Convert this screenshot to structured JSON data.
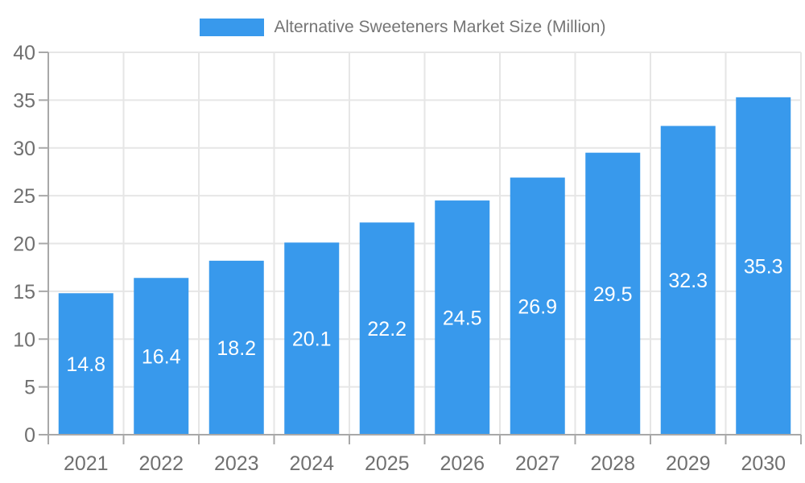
{
  "legend": {
    "label": "Alternative Sweeteners Market Size (Million)"
  },
  "chart_data": {
    "type": "bar",
    "title": "Alternative Sweeteners Market Size (Million)",
    "categories": [
      "2021",
      "2022",
      "2023",
      "2024",
      "2025",
      "2026",
      "2027",
      "2028",
      "2029",
      "2030"
    ],
    "values": [
      14.8,
      16.4,
      18.2,
      20.1,
      22.2,
      24.5,
      26.9,
      29.5,
      32.3,
      35.3
    ],
    "value_labels": [
      "14.8",
      "16.4",
      "18.2",
      "20.1",
      "22.2",
      "24.5",
      "26.9",
      "29.5",
      "32.3",
      "35.3"
    ],
    "ytick_labels": [
      "0",
      "5",
      "10",
      "15",
      "20",
      "25",
      "30",
      "35",
      "40"
    ],
    "xlabel": "",
    "ylabel": "",
    "ylim": [
      0,
      40
    ],
    "ytick_step": 5,
    "grid": true,
    "legend_position": "top",
    "colors": {
      "bar": "#3899EC",
      "value_label": "#FFFFFF",
      "tick_label": "#707070",
      "legend_label": "#757575",
      "grid_line": "#E6E6E6",
      "axis_line": "#A8A8A8",
      "background": "#FFFFFF"
    }
  }
}
